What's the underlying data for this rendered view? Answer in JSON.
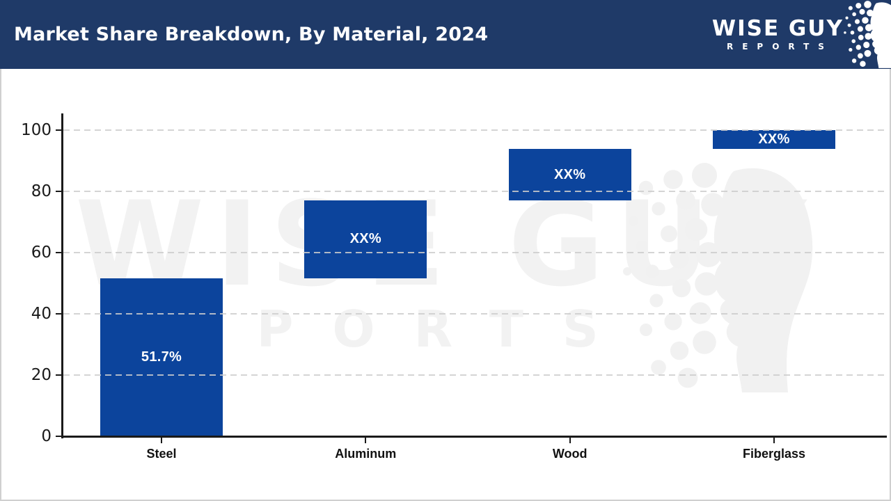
{
  "header": {
    "title": "Market Share Breakdown, By Material, 2024",
    "logo": {
      "line1": "WISE GUY",
      "line2": "REPORTS"
    }
  },
  "watermark": {
    "line1": "WISE GUY",
    "line2": "REPORTS"
  },
  "chart_data": {
    "type": "bar",
    "variant": "waterfall",
    "title": "Market Share Breakdown, By Material, 2024",
    "categories": [
      "Steel",
      "Aluminum",
      "Wood",
      "Fiberglass"
    ],
    "segments": [
      {
        "category": "Steel",
        "start": 0,
        "end": 51.7,
        "value": 51.7,
        "label": "51.7%"
      },
      {
        "category": "Aluminum",
        "start": 51.7,
        "end": 77.0,
        "value": 25.3,
        "label": "XX%"
      },
      {
        "category": "Wood",
        "start": 77.0,
        "end": 93.9,
        "value": 16.9,
        "label": "XX%"
      },
      {
        "category": "Fiberglass",
        "start": 93.9,
        "end": 100.0,
        "value": 6.1,
        "label": "XX%"
      }
    ],
    "yticks": [
      0,
      20,
      40,
      60,
      80,
      100
    ],
    "ylim": [
      0,
      105
    ],
    "xlabel": "",
    "ylabel": "",
    "grid": "dashed-horizontal",
    "legend": "none",
    "bar_color": "#0c449c",
    "bar_label_color": "#ffffff"
  },
  "colors": {
    "header_bg": "#1f3a68",
    "bar": "#0c449c",
    "grid": "#d2d2d2",
    "axis": "#1a1a1a",
    "watermark": "#f2f2f2",
    "frame_border": "#cfcfcf"
  }
}
